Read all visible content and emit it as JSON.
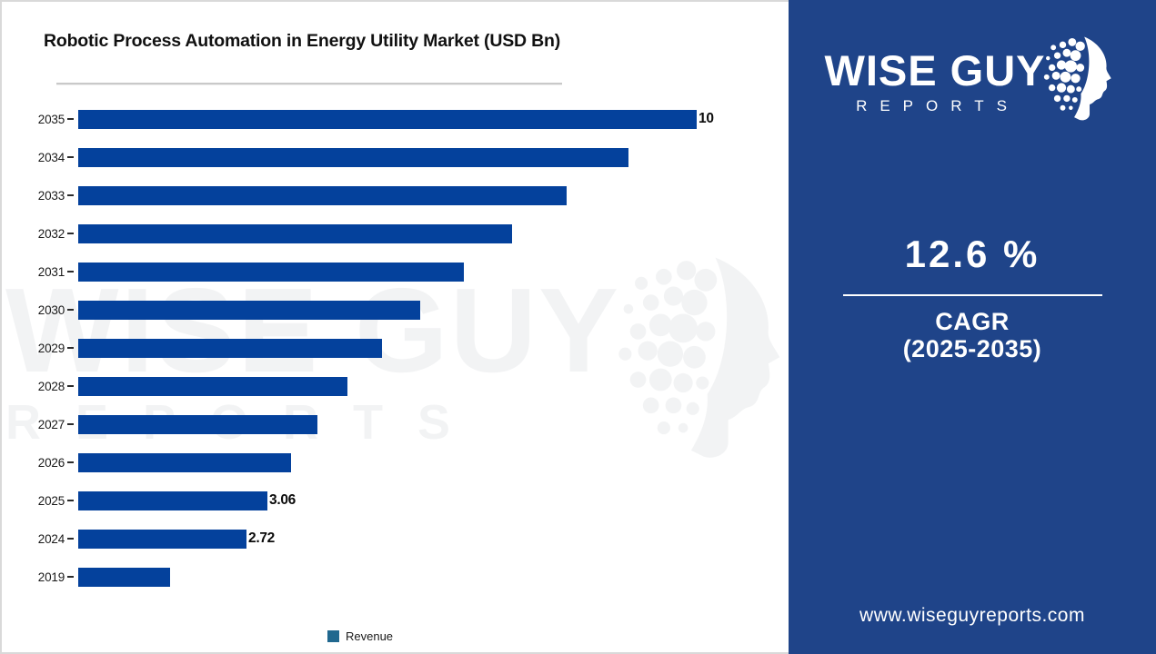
{
  "chart_data": {
    "type": "bar",
    "orientation": "horizontal",
    "title": "Robotic Process Automation in Energy Utility Market (USD Bn)",
    "categories": [
      "2035",
      "2034",
      "2033",
      "2032",
      "2031",
      "2030",
      "2029",
      "2028",
      "2027",
      "2026",
      "2025",
      "2024",
      "2019"
    ],
    "values": [
      10,
      8.9,
      7.9,
      7.02,
      6.23,
      5.53,
      4.91,
      4.36,
      3.87,
      3.44,
      3.06,
      2.72,
      1.48
    ],
    "value_labels": [
      "10",
      "",
      "",
      "",
      "",
      "",
      "",
      "",
      "",
      "",
      "3.06",
      "2.72",
      ""
    ],
    "series_name": "Revenue",
    "xlabel": "",
    "ylabel": "",
    "xlim": [
      0,
      10.4
    ],
    "grid": false,
    "legend_position": "bottom-center"
  },
  "watermark": {
    "line1": "WISE GUY",
    "line2": "REPORTS"
  },
  "panel": {
    "logo": {
      "line1": "WISE GUY",
      "line2": "REPORTS"
    },
    "cagr": {
      "value": "12.6 %",
      "label_line1": "CAGR",
      "label_line2": "(2025-2035)"
    },
    "website": "www.wiseguyreports.com"
  },
  "icons": {
    "logo_head": "dotted-head-profile"
  },
  "colors": {
    "bar": "#04419c",
    "panel_bg": "#1f4489",
    "legend_swatch": "#20688f",
    "title_text": "#111111",
    "divider": "#c9c9c9",
    "panel_text": "#ffffff"
  }
}
